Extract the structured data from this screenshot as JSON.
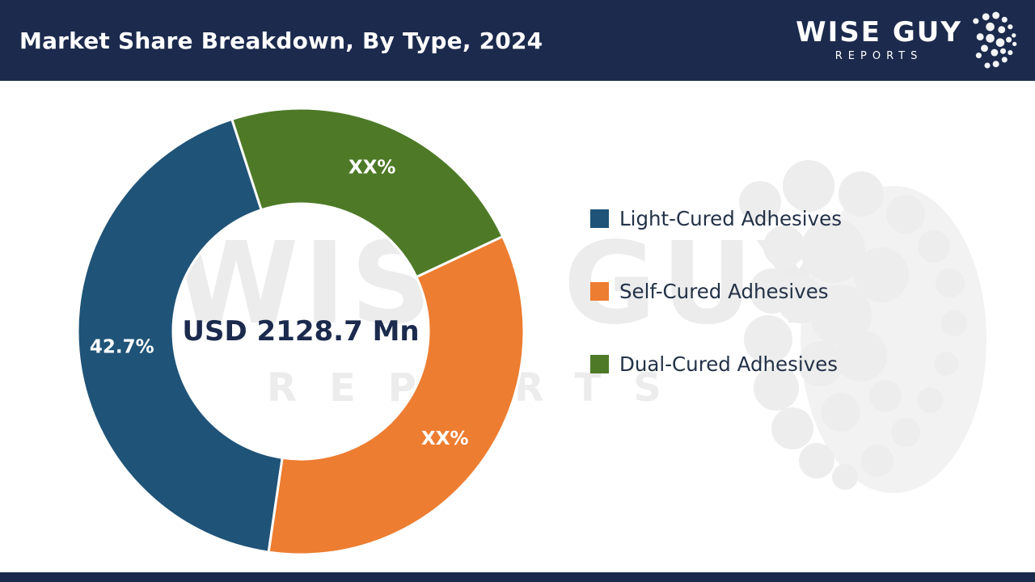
{
  "header": {
    "title": "Market Share Breakdown, By Type, 2024",
    "bg_color": "#1b2a4d",
    "logo": {
      "name": "WISE GUY",
      "tagline": "REPORTS"
    }
  },
  "watermark": {
    "line1": "WISE GUY",
    "line2": "REPORTS"
  },
  "chart_data": {
    "type": "pie",
    "subtype": "donut",
    "title": "Market Share Breakdown, By Type, 2024",
    "center_label": "USD 2128.7 Mn",
    "legend_position": "right",
    "start_angle_deg": 188.3,
    "draw_order": [
      0,
      2,
      1
    ],
    "series": [
      {
        "id": "light-cured",
        "name": "Light-Cured Adhesives",
        "label": "42.7%",
        "value": 42.7,
        "color": "#1f5378"
      },
      {
        "id": "self-cured",
        "name": "Self-Cured Adhesives",
        "label": "XX%",
        "value": 34.3,
        "color": "#ed7d31"
      },
      {
        "id": "dual-cured",
        "name": "Dual-Cured Adhesives",
        "label": "XX%",
        "value": 23.0,
        "color": "#4e7a27"
      }
    ]
  }
}
